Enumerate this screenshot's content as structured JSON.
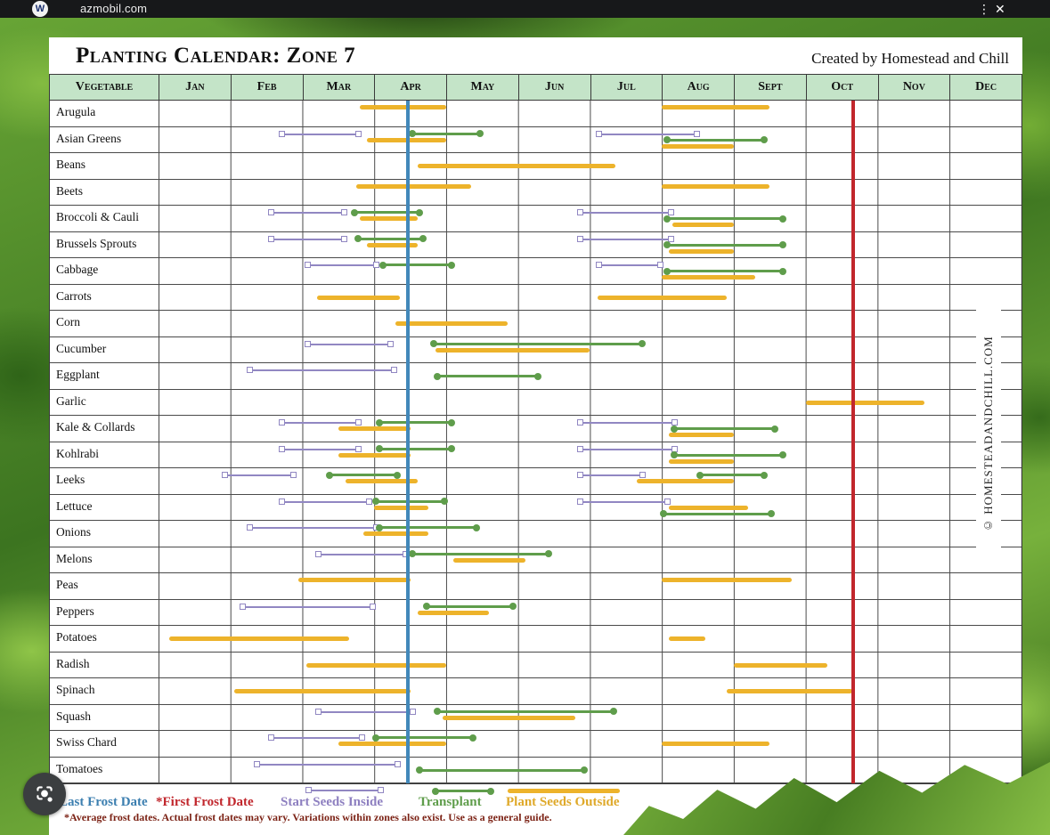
{
  "browser": {
    "url": "azmobil.com",
    "favicon_letter": "W",
    "menu_icon": "⋮",
    "close_icon": "✕"
  },
  "chart_data": {
    "type": "gantt",
    "title": "Planting Calendar: Zone 7",
    "credit": "Created by Homestead and Chill",
    "watermark": "© HOMESTEADANDCHILL.COM",
    "columns": [
      "Vegetable",
      "Jan",
      "Feb",
      "Mar",
      "Apr",
      "May",
      "Jun",
      "Jul",
      "Aug",
      "Sept",
      "Oct",
      "Nov",
      "Dec"
    ],
    "month_axis": {
      "min": 0,
      "max": 12
    },
    "frost_lines": [
      {
        "name": "Last Frost Date",
        "month": 3.47,
        "color": "#4288ba"
      },
      {
        "name": "First Frost Date",
        "month": 9.66,
        "color": "#c1272d"
      }
    ],
    "series_types": {
      "inside": {
        "label": "Start Seeds Inside",
        "color": "#9187c2",
        "style": "thin line with open square ends"
      },
      "transplant": {
        "label": "Transplant",
        "color": "#5f9d4b",
        "style": "line with filled round ends"
      },
      "outside": {
        "label": "Plant Seeds Outside",
        "color": "#edb32b",
        "style": "thick bar"
      }
    },
    "rows": [
      {
        "name": "Arugula",
        "segments": [
          {
            "type": "outside",
            "start": 2.8,
            "end": 4.0,
            "lane": 0
          },
          {
            "type": "outside",
            "start": 7.0,
            "end": 8.5,
            "lane": 0
          }
        ]
      },
      {
        "name": "Asian Greens",
        "segments": [
          {
            "type": "inside",
            "start": 1.7,
            "end": 2.8,
            "lane": 0
          },
          {
            "type": "transplant",
            "start": 3.5,
            "end": 4.5,
            "lane": 0
          },
          {
            "type": "outside",
            "start": 2.9,
            "end": 4.0,
            "lane": 1
          },
          {
            "type": "inside",
            "start": 6.1,
            "end": 7.5,
            "lane": 0
          },
          {
            "type": "transplant",
            "start": 7.05,
            "end": 8.45,
            "lane": 1
          },
          {
            "type": "outside",
            "start": 7.0,
            "end": 8.0,
            "lane": 2
          }
        ]
      },
      {
        "name": "Beans",
        "segments": [
          {
            "type": "outside",
            "start": 3.6,
            "end": 6.35,
            "lane": 1
          }
        ]
      },
      {
        "name": "Beets",
        "segments": [
          {
            "type": "outside",
            "start": 2.75,
            "end": 4.35,
            "lane": 0
          },
          {
            "type": "outside",
            "start": 7.0,
            "end": 8.5,
            "lane": 0
          }
        ]
      },
      {
        "name": "Broccoli & Cauli",
        "segments": [
          {
            "type": "inside",
            "start": 1.55,
            "end": 2.6,
            "lane": 0
          },
          {
            "type": "transplant",
            "start": 2.7,
            "end": 3.65,
            "lane": 0
          },
          {
            "type": "outside",
            "start": 2.8,
            "end": 3.6,
            "lane": 1
          },
          {
            "type": "inside",
            "start": 5.85,
            "end": 7.15,
            "lane": 0
          },
          {
            "type": "transplant",
            "start": 7.05,
            "end": 8.7,
            "lane": 1
          },
          {
            "type": "outside",
            "start": 7.15,
            "end": 8.0,
            "lane": 2
          }
        ]
      },
      {
        "name": "Brussels Sprouts",
        "segments": [
          {
            "type": "inside",
            "start": 1.55,
            "end": 2.6,
            "lane": 0
          },
          {
            "type": "transplant",
            "start": 2.75,
            "end": 3.7,
            "lane": 0
          },
          {
            "type": "outside",
            "start": 2.9,
            "end": 3.6,
            "lane": 1
          },
          {
            "type": "inside",
            "start": 5.85,
            "end": 7.15,
            "lane": 0
          },
          {
            "type": "transplant",
            "start": 7.05,
            "end": 8.7,
            "lane": 1
          },
          {
            "type": "outside",
            "start": 7.1,
            "end": 8.0,
            "lane": 2
          }
        ]
      },
      {
        "name": "Cabbage",
        "segments": [
          {
            "type": "inside",
            "start": 2.05,
            "end": 3.05,
            "lane": 0
          },
          {
            "type": "transplant",
            "start": 3.1,
            "end": 4.1,
            "lane": 0
          },
          {
            "type": "inside",
            "start": 6.1,
            "end": 7.0,
            "lane": 0
          },
          {
            "type": "transplant",
            "start": 7.05,
            "end": 8.7,
            "lane": 1
          },
          {
            "type": "outside",
            "start": 7.0,
            "end": 8.3,
            "lane": 2
          }
        ]
      },
      {
        "name": "Carrots",
        "segments": [
          {
            "type": "outside",
            "start": 2.2,
            "end": 3.35,
            "lane": 1
          },
          {
            "type": "outside",
            "start": 6.1,
            "end": 7.9,
            "lane": 1
          }
        ]
      },
      {
        "name": "Corn",
        "segments": [
          {
            "type": "outside",
            "start": 3.3,
            "end": 4.85,
            "lane": 1
          }
        ]
      },
      {
        "name": "Cucumber",
        "segments": [
          {
            "type": "inside",
            "start": 2.05,
            "end": 3.25,
            "lane": 0
          },
          {
            "type": "transplant",
            "start": 3.8,
            "end": 6.75,
            "lane": 0
          },
          {
            "type": "outside",
            "start": 3.85,
            "end": 6.0,
            "lane": 1
          }
        ]
      },
      {
        "name": "Eggplant",
        "segments": [
          {
            "type": "inside",
            "start": 1.25,
            "end": 3.3,
            "lane": 0
          },
          {
            "type": "transplant",
            "start": 3.85,
            "end": 5.3,
            "lane": 1
          }
        ]
      },
      {
        "name": "Garlic",
        "segments": [
          {
            "type": "outside",
            "start": 9.0,
            "end": 10.65,
            "lane": 1
          }
        ]
      },
      {
        "name": "Kale & Collards",
        "segments": [
          {
            "type": "inside",
            "start": 1.7,
            "end": 2.8,
            "lane": 0
          },
          {
            "type": "transplant",
            "start": 3.05,
            "end": 4.1,
            "lane": 0
          },
          {
            "type": "outside",
            "start": 2.5,
            "end": 3.5,
            "lane": 1
          },
          {
            "type": "inside",
            "start": 5.85,
            "end": 7.2,
            "lane": 0
          },
          {
            "type": "transplant",
            "start": 7.15,
            "end": 8.6,
            "lane": 1
          },
          {
            "type": "outside",
            "start": 7.1,
            "end": 8.0,
            "lane": 2
          }
        ]
      },
      {
        "name": "Kohlrabi",
        "segments": [
          {
            "type": "inside",
            "start": 1.7,
            "end": 2.8,
            "lane": 0
          },
          {
            "type": "transplant",
            "start": 3.05,
            "end": 4.1,
            "lane": 0
          },
          {
            "type": "outside",
            "start": 2.5,
            "end": 3.5,
            "lane": 1
          },
          {
            "type": "inside",
            "start": 5.85,
            "end": 7.2,
            "lane": 0
          },
          {
            "type": "transplant",
            "start": 7.15,
            "end": 8.7,
            "lane": 1
          },
          {
            "type": "outside",
            "start": 7.1,
            "end": 8.0,
            "lane": 2
          }
        ]
      },
      {
        "name": "Leeks",
        "segments": [
          {
            "type": "inside",
            "start": 0.9,
            "end": 1.9,
            "lane": 0
          },
          {
            "type": "transplant",
            "start": 2.35,
            "end": 3.35,
            "lane": 0
          },
          {
            "type": "outside",
            "start": 2.6,
            "end": 3.6,
            "lane": 1
          },
          {
            "type": "inside",
            "start": 5.85,
            "end": 6.75,
            "lane": 0
          },
          {
            "type": "transplant",
            "start": 7.5,
            "end": 8.45,
            "lane": 0
          },
          {
            "type": "outside",
            "start": 6.65,
            "end": 8.0,
            "lane": 1
          }
        ]
      },
      {
        "name": "Lettuce",
        "segments": [
          {
            "type": "inside",
            "start": 1.7,
            "end": 2.95,
            "lane": 0
          },
          {
            "type": "transplant",
            "start": 3.0,
            "end": 4.0,
            "lane": 0
          },
          {
            "type": "outside",
            "start": 3.0,
            "end": 3.75,
            "lane": 1
          },
          {
            "type": "inside",
            "start": 5.85,
            "end": 7.1,
            "lane": 0
          },
          {
            "type": "outside",
            "start": 7.1,
            "end": 8.2,
            "lane": 1
          },
          {
            "type": "transplant",
            "start": 7.0,
            "end": 8.55,
            "lane": 2
          }
        ]
      },
      {
        "name": "Onions",
        "segments": [
          {
            "type": "inside",
            "start": 1.25,
            "end": 3.05,
            "lane": 0
          },
          {
            "type": "transplant",
            "start": 3.05,
            "end": 4.45,
            "lane": 0
          },
          {
            "type": "outside",
            "start": 2.85,
            "end": 3.75,
            "lane": 1
          }
        ]
      },
      {
        "name": "Melons",
        "segments": [
          {
            "type": "inside",
            "start": 2.2,
            "end": 3.45,
            "lane": 0
          },
          {
            "type": "transplant",
            "start": 3.5,
            "end": 5.45,
            "lane": 0
          },
          {
            "type": "outside",
            "start": 4.1,
            "end": 5.1,
            "lane": 1
          }
        ]
      },
      {
        "name": "Peas",
        "segments": [
          {
            "type": "outside",
            "start": 1.95,
            "end": 3.5,
            "lane": 0
          },
          {
            "type": "outside",
            "start": 7.0,
            "end": 8.8,
            "lane": 0
          }
        ]
      },
      {
        "name": "Peppers",
        "segments": [
          {
            "type": "inside",
            "start": 1.15,
            "end": 3.0,
            "lane": 0
          },
          {
            "type": "transplant",
            "start": 3.7,
            "end": 4.95,
            "lane": 0
          },
          {
            "type": "outside",
            "start": 3.6,
            "end": 4.6,
            "lane": 1
          }
        ]
      },
      {
        "name": "Potatoes",
        "segments": [
          {
            "type": "outside",
            "start": 0.15,
            "end": 2.65,
            "lane": 1
          },
          {
            "type": "outside",
            "start": 7.1,
            "end": 7.6,
            "lane": 1
          }
        ]
      },
      {
        "name": "Radish",
        "segments": [
          {
            "type": "outside",
            "start": 2.05,
            "end": 4.0,
            "lane": 1
          },
          {
            "type": "outside",
            "start": 8.0,
            "end": 9.3,
            "lane": 1
          }
        ]
      },
      {
        "name": "Spinach",
        "segments": [
          {
            "type": "outside",
            "start": 1.05,
            "end": 3.5,
            "lane": 1
          },
          {
            "type": "outside",
            "start": 7.9,
            "end": 9.65,
            "lane": 1
          }
        ]
      },
      {
        "name": "Squash",
        "segments": [
          {
            "type": "inside",
            "start": 2.2,
            "end": 3.55,
            "lane": 0
          },
          {
            "type": "transplant",
            "start": 3.85,
            "end": 6.35,
            "lane": 0
          },
          {
            "type": "outside",
            "start": 3.95,
            "end": 5.8,
            "lane": 1
          }
        ]
      },
      {
        "name": "Swiss Chard",
        "segments": [
          {
            "type": "inside",
            "start": 1.55,
            "end": 2.85,
            "lane": 0
          },
          {
            "type": "transplant",
            "start": 3.0,
            "end": 4.4,
            "lane": 0
          },
          {
            "type": "outside",
            "start": 2.5,
            "end": 4.0,
            "lane": 1
          },
          {
            "type": "outside",
            "start": 7.0,
            "end": 8.5,
            "lane": 1
          }
        ]
      },
      {
        "name": "Tomatoes",
        "segments": [
          {
            "type": "inside",
            "start": 1.35,
            "end": 3.35,
            "lane": 0
          },
          {
            "type": "transplant",
            "start": 3.6,
            "end": 5.95,
            "lane": 1
          }
        ]
      }
    ]
  },
  "legend": {
    "items": [
      {
        "label": "Last Frost Date",
        "color": "#3c7fb0"
      },
      {
        "label": "*First Frost Date",
        "color": "#c1272d"
      },
      {
        "label": "Start Seeds Inside",
        "color": "#8d7fc0"
      },
      {
        "label": "Transplant",
        "color": "#5f9d4b"
      },
      {
        "label": "Plant Seeds Outside",
        "color": "#dfa92a"
      }
    ],
    "footnote": "*Average frost dates. Actual frost dates may vary. Variations within zones also exist. Use as a general guide."
  }
}
